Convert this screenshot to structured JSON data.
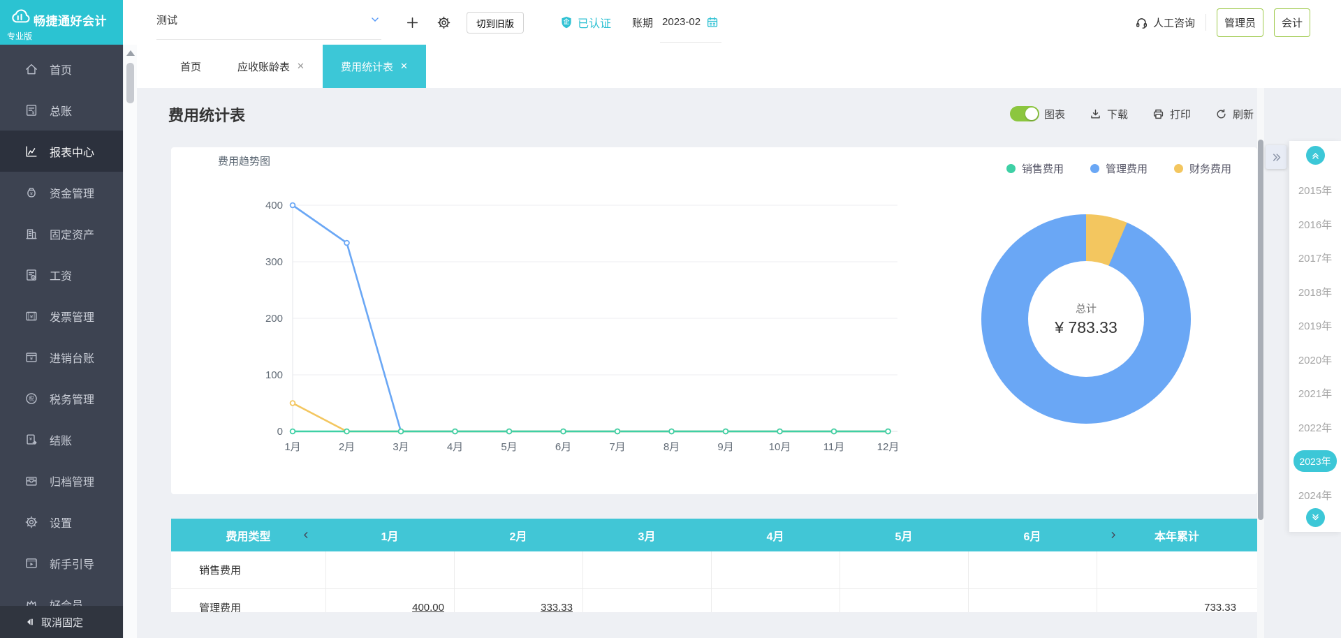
{
  "brand": {
    "name": "畅捷通好会计",
    "edition": "专业版"
  },
  "topbar": {
    "account": "测试",
    "switch_old": "切到旧版",
    "certified": "已认证",
    "period_label": "账期",
    "period_value": "2023-02",
    "support": "人工咨询",
    "admin_badge": "管理员",
    "role_badge": "会计"
  },
  "sidebar": {
    "items": [
      {
        "label": "首页",
        "icon": "home"
      },
      {
        "label": "总账",
        "icon": "ledger"
      },
      {
        "label": "报表中心",
        "icon": "report",
        "active": true
      },
      {
        "label": "资金管理",
        "icon": "funds"
      },
      {
        "label": "固定资产",
        "icon": "asset"
      },
      {
        "label": "工资",
        "icon": "payroll"
      },
      {
        "label": "发票管理",
        "icon": "invoice"
      },
      {
        "label": "进销台账",
        "icon": "trade"
      },
      {
        "label": "税务管理",
        "icon": "tax"
      },
      {
        "label": "结账",
        "icon": "closing"
      },
      {
        "label": "归档管理",
        "icon": "archive"
      },
      {
        "label": "设置",
        "icon": "settings"
      },
      {
        "label": "新手引导",
        "icon": "guide"
      },
      {
        "label": "好会员",
        "icon": "vip",
        "clipped": true
      }
    ],
    "collapse_label": "取消固定"
  },
  "tabs": [
    {
      "label": "首页",
      "closable": false,
      "active": false
    },
    {
      "label": "应收账龄表",
      "closable": true,
      "active": false
    },
    {
      "label": "费用统计表",
      "closable": true,
      "active": true
    }
  ],
  "page": {
    "title": "费用统计表",
    "chart_toggle_label": "图表",
    "download_label": "下载",
    "print_label": "打印",
    "refresh_label": "刷新"
  },
  "chart_data": [
    {
      "type": "line",
      "title": "费用趋势图",
      "x": [
        "1月",
        "2月",
        "3月",
        "4月",
        "5月",
        "6月",
        "7月",
        "8月",
        "9月",
        "10月",
        "11月",
        "12月"
      ],
      "ylim": [
        0,
        400
      ],
      "yticks": [
        0,
        100,
        200,
        300,
        400
      ],
      "grid": true,
      "legend_position": "top-right",
      "series": [
        {
          "name": "销售费用",
          "color": "#3ed0a5",
          "values": [
            0,
            0,
            0,
            0,
            0,
            0,
            0,
            0,
            0,
            0,
            0,
            0
          ]
        },
        {
          "name": "管理费用",
          "color": "#6aa7f5",
          "values": [
            400,
            333.33,
            0,
            0,
            0,
            0,
            0,
            0,
            0,
            0,
            0,
            0
          ]
        },
        {
          "name": "财务费用",
          "color": "#f3c65f",
          "values": [
            50,
            0,
            0,
            0,
            0,
            0,
            0,
            0,
            0,
            0,
            0,
            0
          ]
        }
      ]
    },
    {
      "type": "pie",
      "subtype": "donut",
      "center_label": "总计",
      "center_value": "¥ 783.33",
      "slices": [
        {
          "name": "财务费用",
          "value": 50,
          "color": "#f3c65f"
        },
        {
          "name": "管理费用",
          "value": 733.33,
          "color": "#6aa7f5"
        }
      ]
    }
  ],
  "years": {
    "list": [
      "2015年",
      "2016年",
      "2017年",
      "2018年",
      "2019年",
      "2020年",
      "2021年",
      "2022年",
      "2023年",
      "2024年"
    ],
    "selected": "2023年"
  },
  "table": {
    "headers": [
      "费用类型",
      "1月",
      "2月",
      "3月",
      "4月",
      "5月",
      "6月",
      "本年累计"
    ],
    "rows": [
      {
        "name": "销售费用",
        "values": [
          "",
          "",
          "",
          "",
          "",
          ""
        ],
        "total": "",
        "linked": []
      },
      {
        "name": "管理费用",
        "values": [
          "400.00",
          "333.33",
          "",
          "",
          "",
          ""
        ],
        "total": "733.33",
        "linked": [
          0,
          1
        ]
      }
    ]
  }
}
